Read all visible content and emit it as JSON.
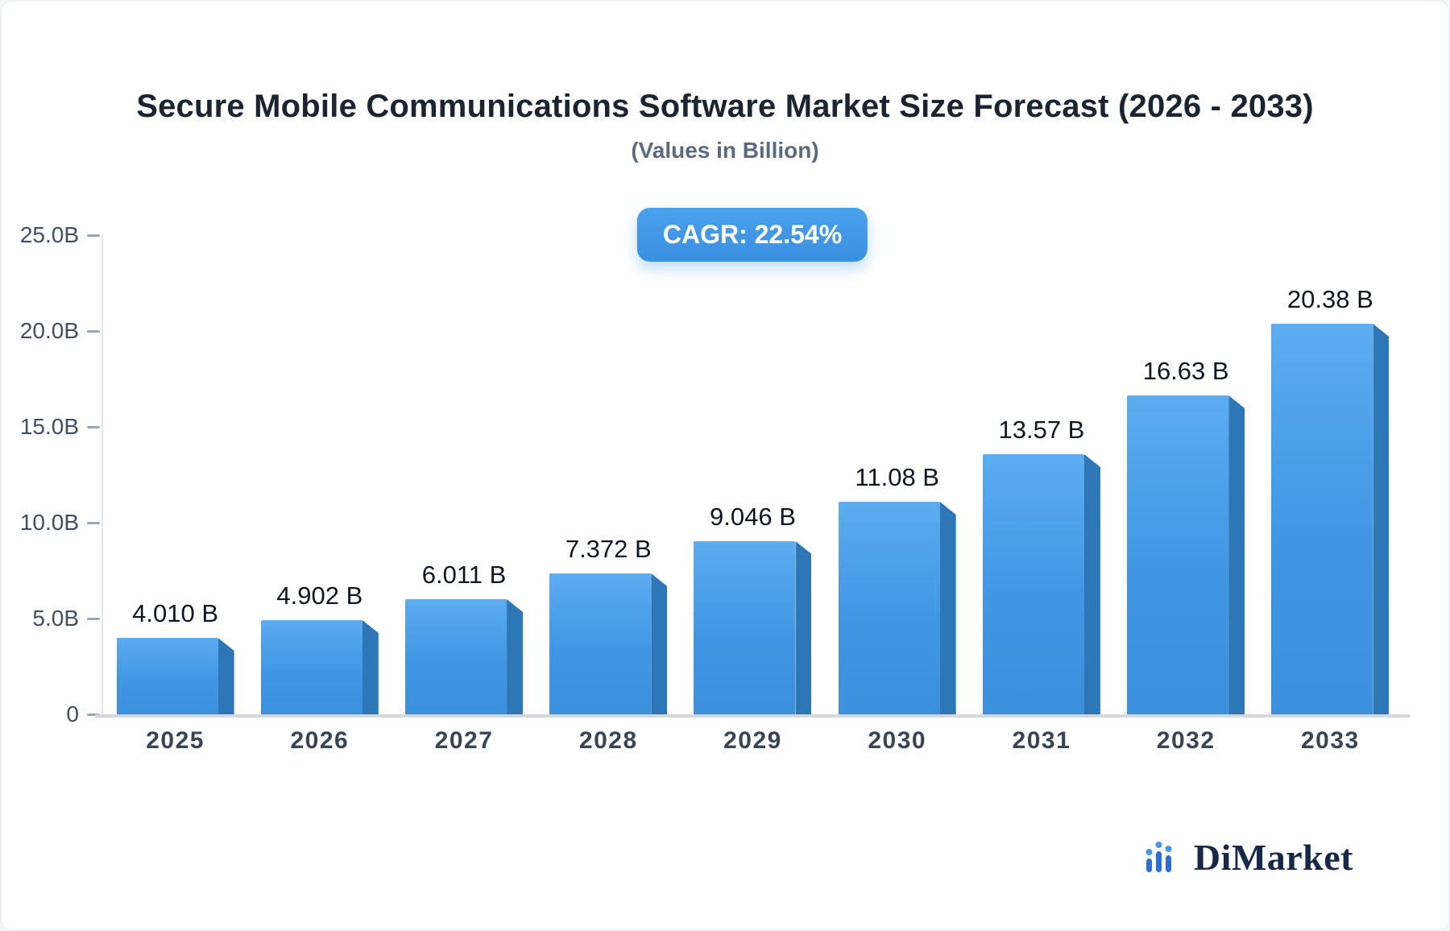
{
  "header": {
    "cagr_label": "CAGR: 22.54%"
  },
  "chart_data": {
    "type": "bar",
    "title": "Secure Mobile Communications Software Market Size Forecast (2026 - 2033)",
    "subtitle": "(Values in Billion)",
    "unit": "Billion",
    "categories": [
      "2025",
      "2026",
      "2027",
      "2028",
      "2029",
      "2030",
      "2031",
      "2032",
      "2033"
    ],
    "values": [
      4.01,
      4.902,
      6.011,
      7.372,
      9.046,
      11.08,
      13.57,
      16.63,
      20.38
    ],
    "value_labels": [
      "4.010 B",
      "4.902 B",
      "6.011 B",
      "7.372 B",
      "9.046 B",
      "11.08 B",
      "13.57 B",
      "16.63 B",
      "20.38 B"
    ],
    "ylim": [
      0,
      25
    ],
    "y_tick_labels": [
      "25.0B",
      "20.0B",
      "15.0B",
      "10.0B",
      "5.0B",
      "0"
    ],
    "grid": "off",
    "legend": "none",
    "cagr": "22.54%",
    "colors": {
      "bar_front_top": "#5cacf0",
      "bar_front": "#3f97e4",
      "bar_side": "#2e77b6",
      "badge": "#429ae8",
      "baseline": "#d3d8de"
    }
  },
  "branding": {
    "logo_text": "DiMarket",
    "logo_icon": "bar-chart-icon"
  }
}
